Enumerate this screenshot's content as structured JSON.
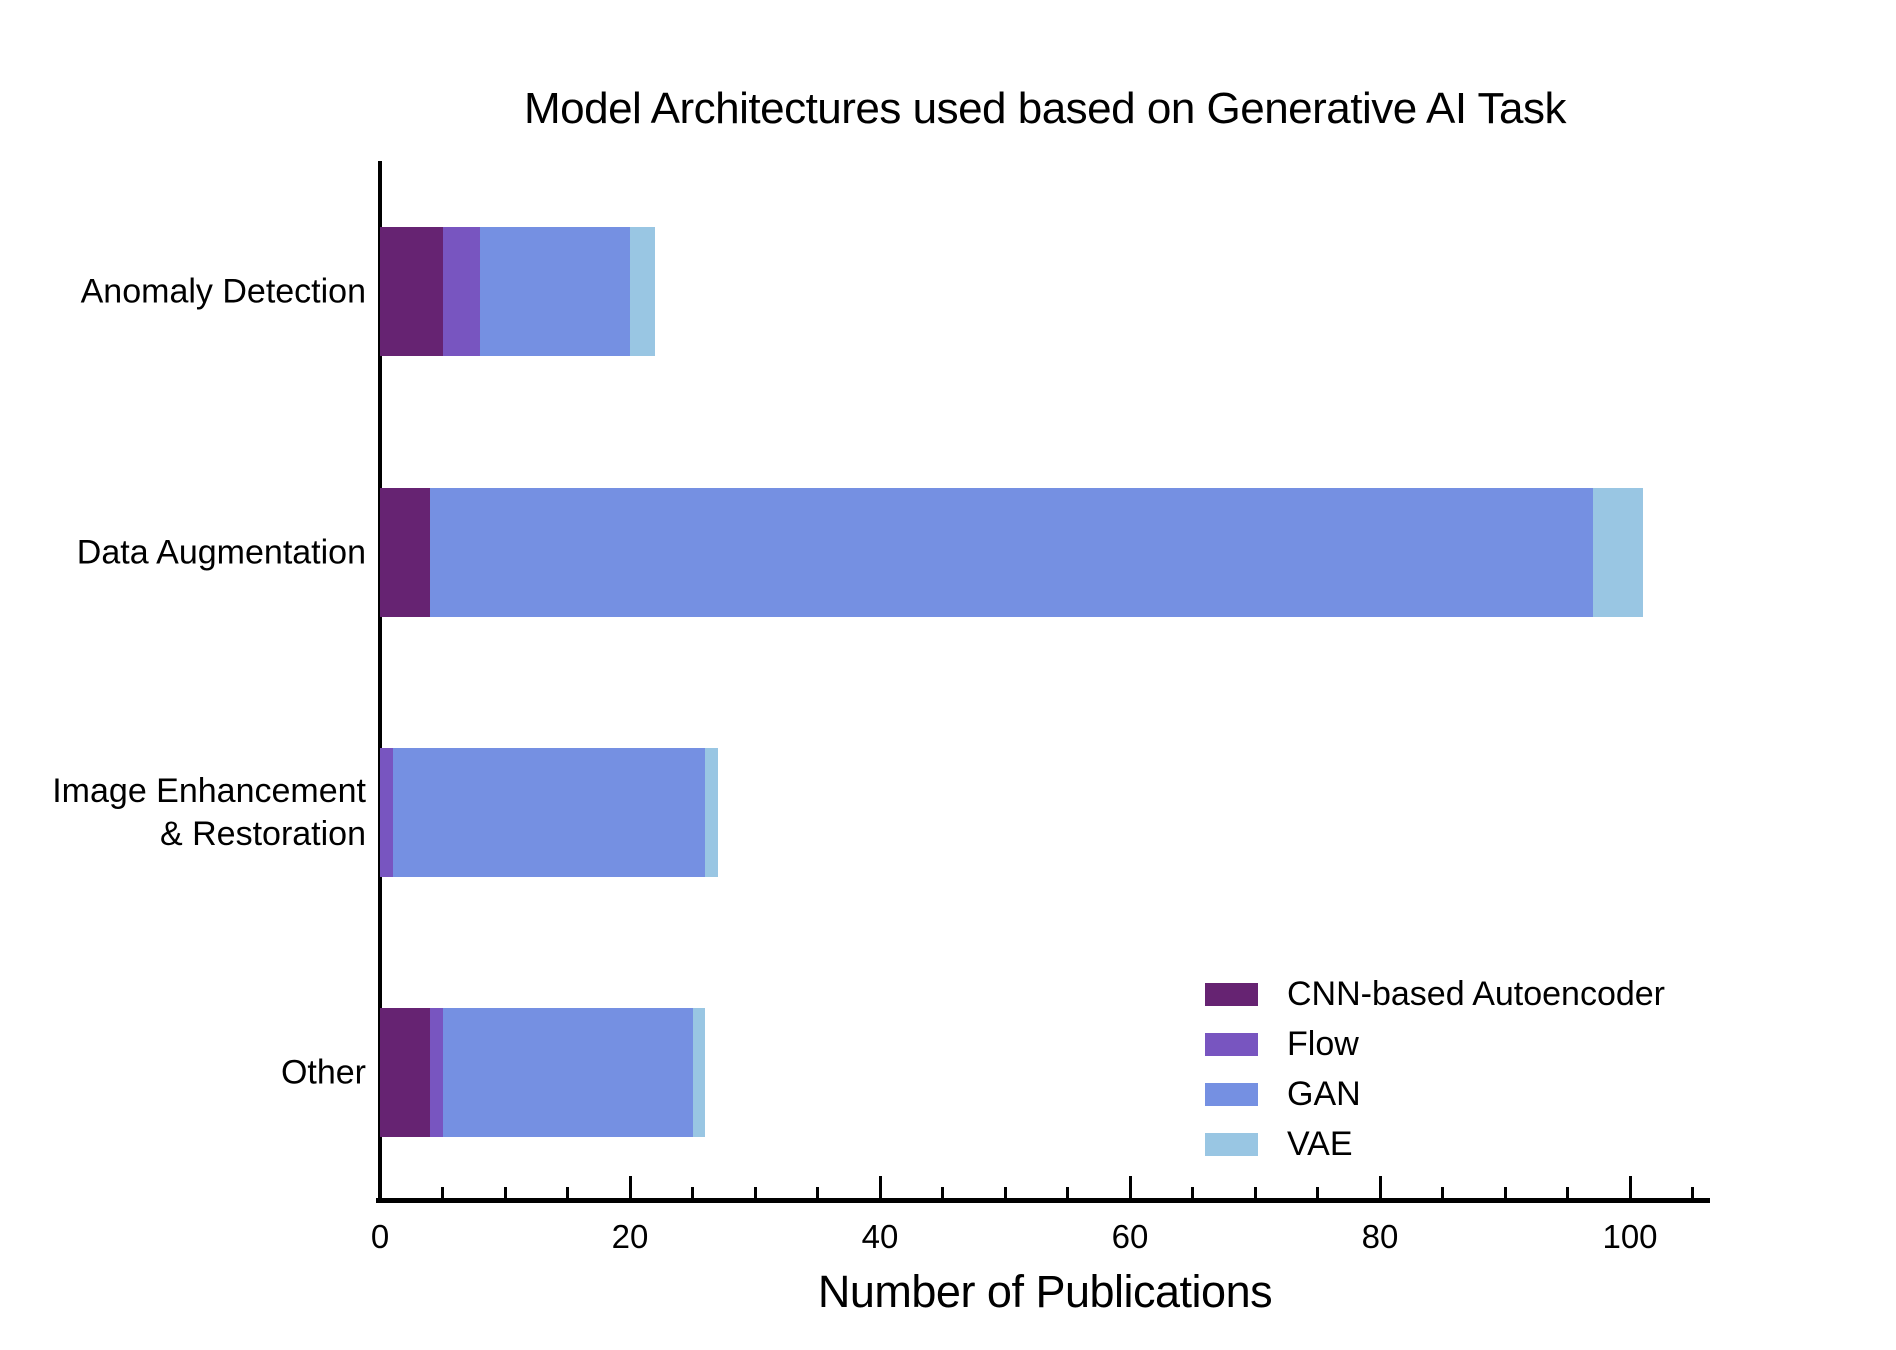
{
  "title": "Model Architectures used based on Generative AI Task",
  "xlabel": "Number of Publications",
  "colors": {
    "background": "#ffffff",
    "axis": "#000000",
    "text": "#000000",
    "cnn_based_autoencoder": "#662372",
    "flow": "#7855C0",
    "gan": "#7590E2",
    "vae": "#99C6E3"
  },
  "chart_data": {
    "type": "bar",
    "orientation": "horizontal",
    "stacked": true,
    "grid": false,
    "legend_position": "lower right",
    "categories": [
      "Anomaly Detection",
      "Data Augmentation",
      "Image Enhancement & Restoration",
      "Other"
    ],
    "category_label_lines": [
      [
        "Anomaly Detection"
      ],
      [
        "Data Augmentation"
      ],
      [
        "Image Enhancement",
        "& Restoration"
      ],
      [
        "Other"
      ]
    ],
    "series": [
      {
        "name": "CNN-based Autoencoder",
        "color": "#662372",
        "values": [
          5,
          4,
          0,
          4
        ]
      },
      {
        "name": "Flow",
        "color": "#7855C0",
        "values": [
          3,
          0,
          1,
          1
        ]
      },
      {
        "name": "GAN",
        "color": "#7590E2",
        "values": [
          12,
          93,
          25,
          20
        ]
      },
      {
        "name": "VAE",
        "color": "#99C6E3",
        "values": [
          2,
          4,
          1,
          1
        ]
      }
    ],
    "totals": [
      22,
      101,
      27,
      26
    ],
    "xlim": [
      0,
      106
    ],
    "x_ticks": [
      0,
      20,
      40,
      60,
      80,
      100
    ],
    "x_minor_tick_step": 5,
    "x_minor_tick_max": 105
  }
}
